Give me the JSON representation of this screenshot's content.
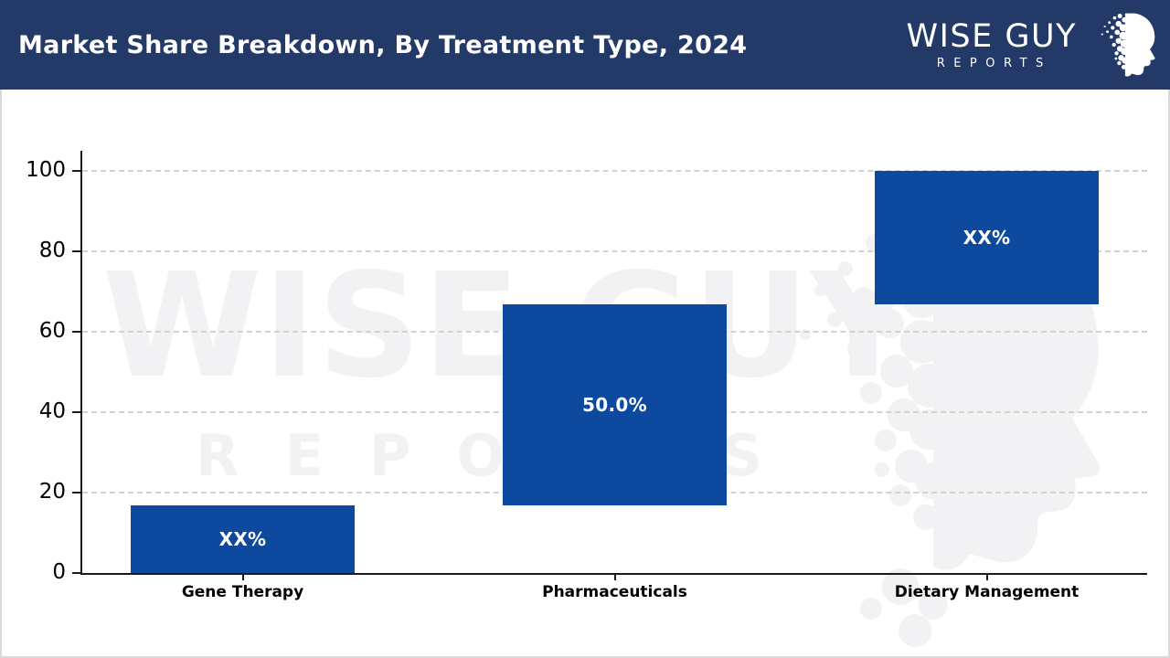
{
  "header": {
    "title": "Market Share Breakdown, By Treatment Type, 2024",
    "logo": {
      "line1": "WISE GUY",
      "line2": "REPORTS"
    }
  },
  "watermark": {
    "line1": "WISE GUY",
    "line2": "REPORTS"
  },
  "colors": {
    "header_bg": "#233a68",
    "bar": "#0d4a9f",
    "grid": "#d2d2d2",
    "axis": "#1a1a1a",
    "bar_label_text": "#ffffff",
    "watermark": "#f2f2f4"
  },
  "chart_data": {
    "type": "bar",
    "subtype": "waterfall (floating stacked bars)",
    "title": "Market Share Breakdown, By Treatment Type, 2024",
    "categories": [
      "Gene Therapy",
      "Pharmaceuticals",
      "Dietary Management"
    ],
    "segments": [
      {
        "category": "Gene Therapy",
        "start": 0,
        "end": 16.8,
        "label": "XX%"
      },
      {
        "category": "Pharmaceuticals",
        "start": 16.8,
        "end": 66.8,
        "label": "50.0%"
      },
      {
        "category": "Dietary Management",
        "start": 66.8,
        "end": 100,
        "label": "XX%"
      }
    ],
    "bar_labels": [
      "XX%",
      "50.0%",
      "XX%"
    ],
    "y_ticks": [
      0,
      20,
      40,
      60,
      80,
      100
    ],
    "ylim": [
      0,
      105
    ],
    "xlabel": "",
    "ylabel": "",
    "grid": "horizontal dashed",
    "legend": "none",
    "bar_color": "#0d4a9f"
  }
}
